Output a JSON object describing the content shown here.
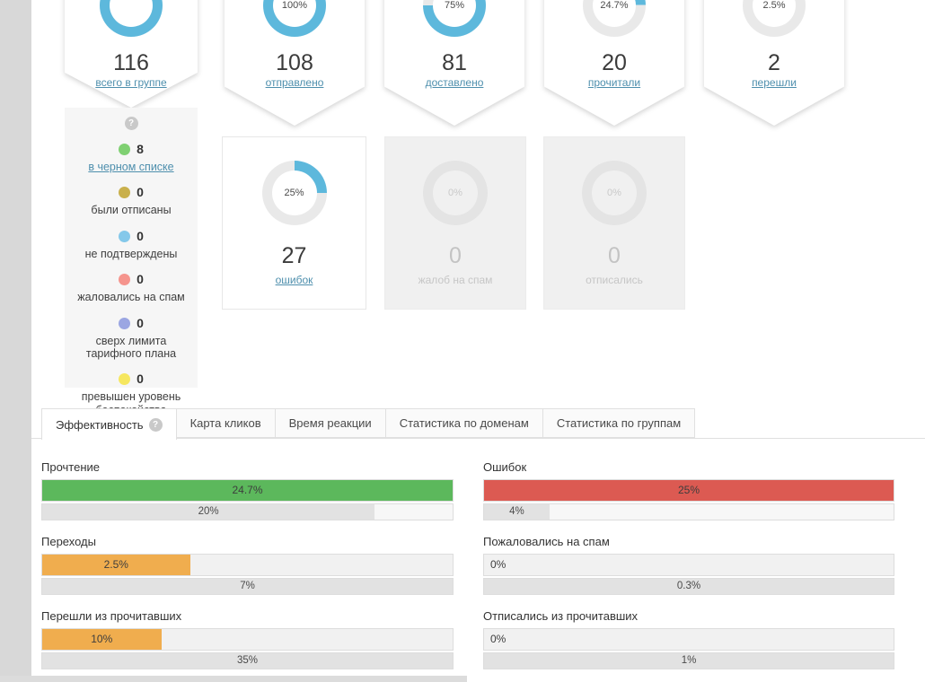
{
  "colors": {
    "blue": "#5db8dc",
    "green": "#5cb85c",
    "red": "#dc5a52",
    "orange": "#f0ad4e",
    "track": "#e9e9e9",
    "disabled_ring": "#e4e4e4"
  },
  "top_cards": [
    {
      "percent": "",
      "pct": 100,
      "value": "116",
      "label": "всего в группе"
    },
    {
      "percent": "100%",
      "pct": 100,
      "value": "108",
      "label": "отправлено"
    },
    {
      "percent": "75%",
      "pct": 75,
      "value": "81",
      "label": "доставлено"
    },
    {
      "percent": "24.7%",
      "pct": 24.7,
      "value": "20",
      "label": "прочитали"
    },
    {
      "percent": "2.5%",
      "pct": 2.5,
      "value": "2",
      "label": "перешли"
    }
  ],
  "legend": {
    "help_icon": "?",
    "items": [
      {
        "color": "#7fd072",
        "value": "8",
        "label": "в черном списке",
        "link": true
      },
      {
        "color": "#c9b04c",
        "value": "0",
        "label": "были отписаны",
        "link": false
      },
      {
        "color": "#84c8ea",
        "value": "0",
        "label": "не подтверждены",
        "link": false
      },
      {
        "color": "#f5948d",
        "value": "0",
        "label": "жаловались на спам",
        "link": false
      },
      {
        "color": "#9ba6e2",
        "value": "0",
        "label": "сверх лимита тарифного плана",
        "link": false
      },
      {
        "color": "#f6e75f",
        "value": "0",
        "label": "превышен уровень беспокойства",
        "link": false
      }
    ]
  },
  "mid_cards": [
    {
      "percent": "25%",
      "pct": 25,
      "value": "27",
      "label": "ошибок",
      "disabled": false
    },
    {
      "percent": "0%",
      "pct": 0,
      "value": "0",
      "label": "жалоб на спам",
      "disabled": true
    },
    {
      "percent": "0%",
      "pct": 0,
      "value": "0",
      "label": "отписались",
      "disabled": true
    }
  ],
  "tabs": [
    {
      "label": "Эффективность",
      "help": "?"
    },
    {
      "label": "Карта кликов"
    },
    {
      "label": "Время реакции"
    },
    {
      "label": "Статистика по доменам"
    },
    {
      "label": "Статистика по группам"
    }
  ],
  "metrics": [
    {
      "label": "Прочтение",
      "value": "24.7%",
      "value_width": 100,
      "color": "green",
      "avg": "20%",
      "avg_width": 81
    },
    {
      "label": "Ошибок",
      "value": "25%",
      "value_width": 100,
      "color": "red",
      "avg": "4%",
      "avg_width": 16
    },
    {
      "label": "Переходы",
      "value": "2.5%",
      "value_width": 36,
      "color": "orange",
      "avg": "7%",
      "avg_width": 100
    },
    {
      "label": "Пожаловались на спам",
      "value": "0%",
      "value_width": 0,
      "color": "none",
      "avg": "0.3%",
      "avg_width": 100
    },
    {
      "label": "Перешли из прочитавших",
      "value": "10%",
      "value_width": 29,
      "color": "orange",
      "avg": "35%",
      "avg_width": 100
    },
    {
      "label": "Отписались из прочитавших",
      "value": "0%",
      "value_width": 0,
      "color": "none",
      "avg": "1%",
      "avg_width": 100
    }
  ]
}
